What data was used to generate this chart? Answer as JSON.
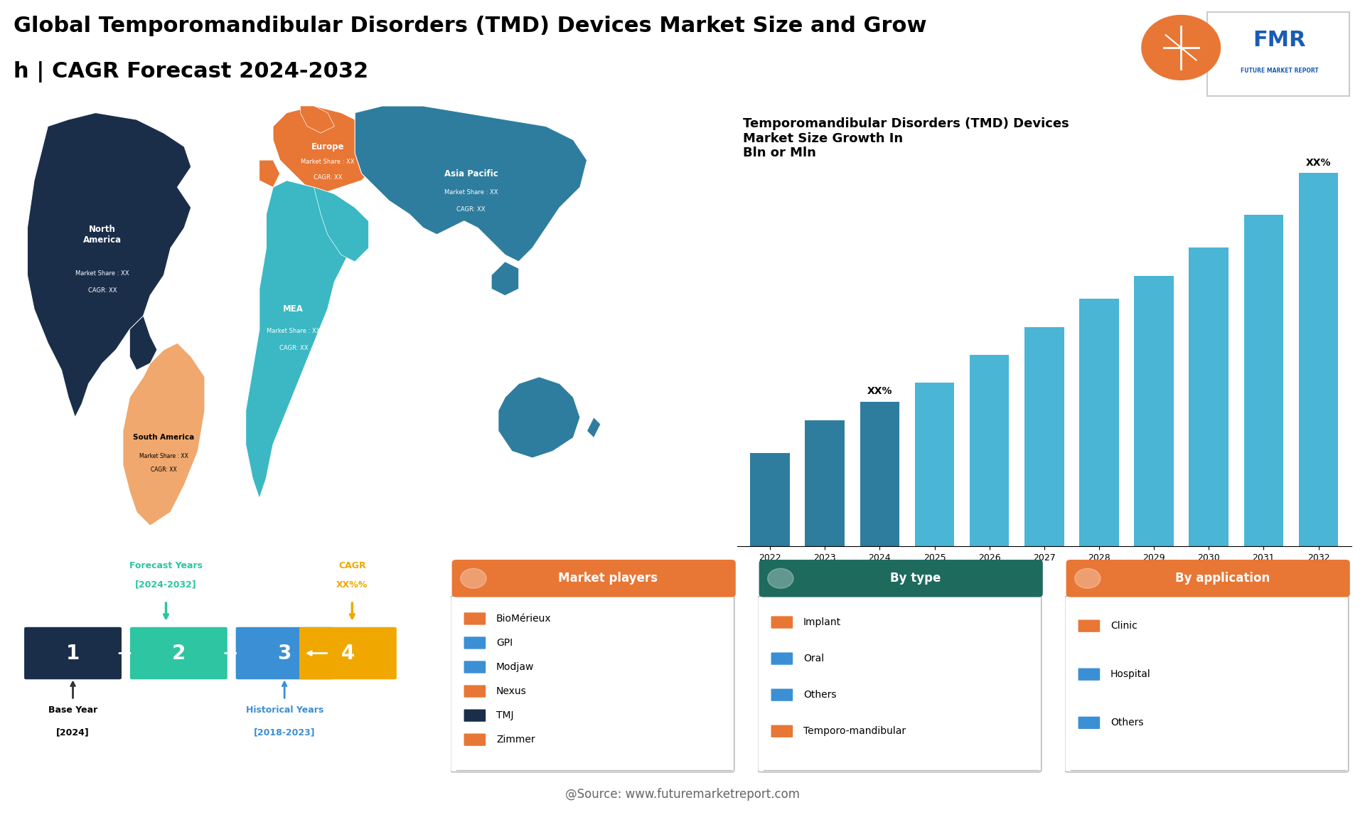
{
  "title_line1": "Global Temporomandibular Disorders (TMD) Devices Market Size and Grow",
  "title_line2": "h | CAGR Forecast 2024-2032",
  "bg_color": "#ffffff",
  "title_fontsize": 22,
  "chart_title": "Temporomandibular Disorders (TMD) Devices\nMarket Size Growth In\nBln or Mln",
  "years": [
    2022,
    2023,
    2024,
    2025,
    2026,
    2027,
    2028,
    2029,
    2030,
    2031,
    2032
  ],
  "bar_values": [
    1.0,
    1.35,
    1.55,
    1.75,
    2.05,
    2.35,
    2.65,
    2.9,
    3.2,
    3.55,
    4.0
  ],
  "bar_color_dark": "#2e7d9e",
  "bar_color_light": "#4ab5d5",
  "regions": {
    "North America": {
      "color": "#1a2e4a"
    },
    "South America": {
      "color": "#f0a86e"
    },
    "Europe": {
      "color": "#e87635"
    },
    "MEA": {
      "color": "#3bb8c4"
    },
    "Asia Pacific": {
      "color": "#2e7d9e"
    }
  },
  "timeline_labels": [
    "1",
    "2",
    "3",
    "4"
  ],
  "timeline_colors": [
    "#1a2e4a",
    "#2dc5a2",
    "#3b8fd4",
    "#f0a800"
  ],
  "market_players_title": "Market players",
  "market_players": [
    "BioMérieux",
    "GPI",
    "Modjaw",
    "Nexus",
    "TMJ",
    "Zimmer"
  ],
  "by_type_title": "By type",
  "by_type": [
    "Implant",
    "Oral",
    "Others",
    "Temporo-mandibular"
  ],
  "by_app_title": "By application",
  "by_app": [
    "Clinic",
    "Hospital",
    "Others"
  ],
  "players_dot_colors": [
    "#e87635",
    "#3b8fd4",
    "#3b8fd4",
    "#e87635",
    "#1a2e4a",
    "#e87635"
  ],
  "type_dot_colors": [
    "#e87635",
    "#3b8fd4",
    "#3b8fd4",
    "#e87635"
  ],
  "app_dot_colors": [
    "#e87635",
    "#3b8fd4",
    "#3b8fd4"
  ],
  "pill_orange": "#e87635",
  "pill_teal": "#1e6b5e",
  "source_text": "@Source: www.futuremarketreport.com",
  "fmr_color": "#1a5cb5",
  "forecast_color": "#2dc5a2",
  "cagr_color": "#f0a800",
  "hist_color": "#3b8fd4"
}
